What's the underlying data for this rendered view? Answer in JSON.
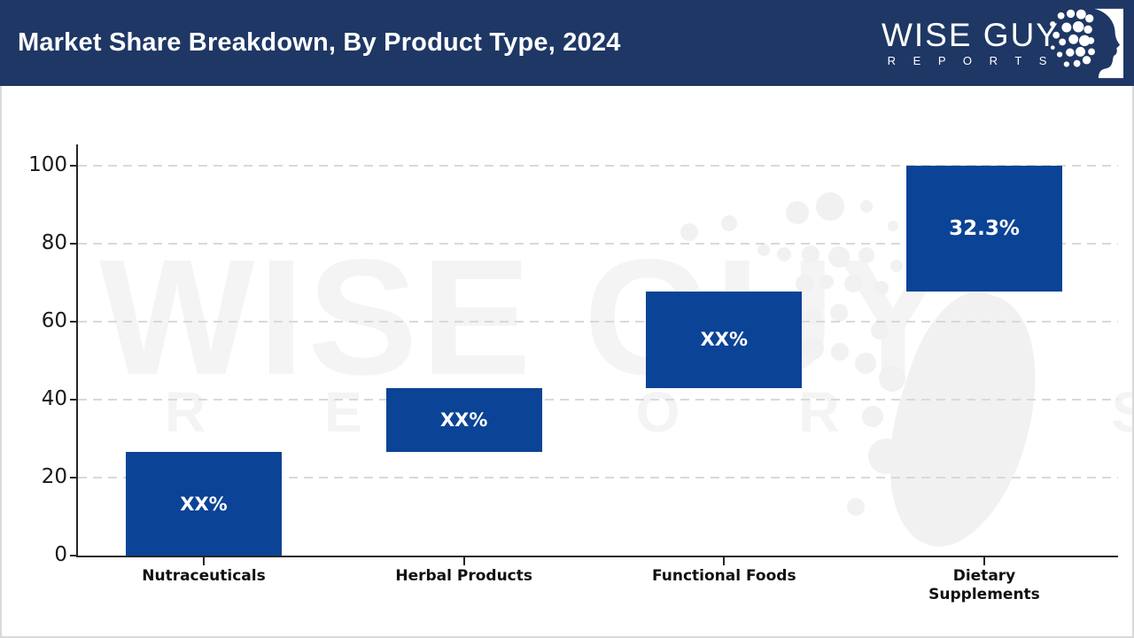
{
  "header": {
    "title": "Market Share Breakdown, By Product Type, 2024",
    "bg_color": "#1e3765",
    "logo": {
      "wordmark": "WISE GUY",
      "subtitle": "R E P O R T S"
    }
  },
  "watermark": {
    "wordmark": "WISE GUY",
    "subtitle": "R E P O R T S"
  },
  "chart_data": {
    "type": "bar",
    "variant": "waterfall",
    "title": "Market Share Breakdown, By Product Type, 2024",
    "categories": [
      "Nutraceuticals",
      "Herbal Products",
      "Functional Foods",
      "Dietary Supplements"
    ],
    "segments": [
      {
        "category": "Nutraceuticals",
        "category_lines": [
          "Nutraceuticals"
        ],
        "start": 0,
        "end": 26.5,
        "label": "XX%"
      },
      {
        "category": "Herbal Products",
        "category_lines": [
          "Herbal Products"
        ],
        "start": 26.5,
        "end": 43,
        "label": "XX%"
      },
      {
        "category": "Functional Foods",
        "category_lines": [
          "Functional Foods"
        ],
        "start": 43,
        "end": 67.7,
        "label": "XX%"
      },
      {
        "category": "Dietary Supplements",
        "category_lines": [
          "Dietary",
          "Supplements"
        ],
        "start": 67.7,
        "end": 100,
        "label": "32.3%"
      }
    ],
    "y_ticks": [
      0,
      20,
      40,
      60,
      80,
      100
    ],
    "ylim": [
      0,
      105
    ],
    "xlabel": "",
    "ylabel": "",
    "grid": "horizontal-dashed",
    "legend": "none",
    "colors": {
      "bar": "#0b4396",
      "bar_label": "#ffffff",
      "grid": "#d9d9d9",
      "axis": "#262626",
      "tick_label": "#1a1a1a",
      "category_label": "#111111",
      "header_bg": "#1e3765",
      "header_text": "#ffffff"
    }
  }
}
